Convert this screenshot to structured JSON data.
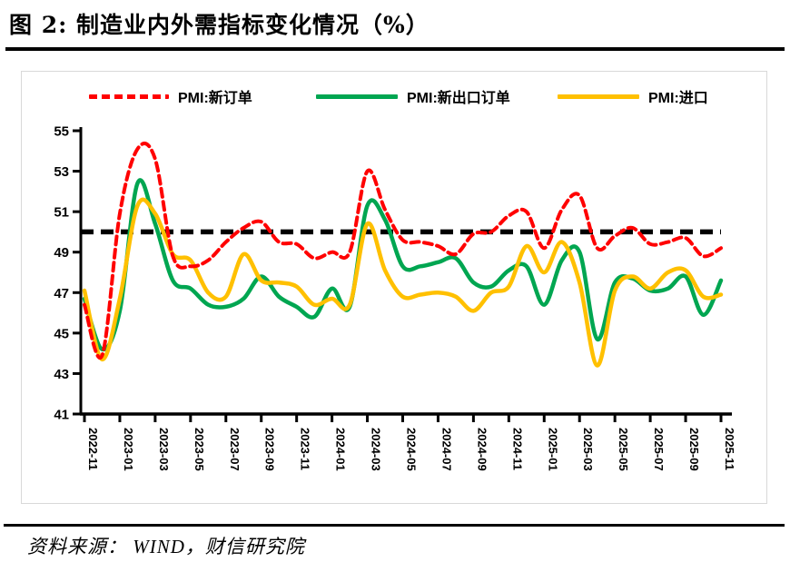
{
  "figure": {
    "title": "图 2:  制造业内外需指标变化情况（%）",
    "source": "资料来源： WIND，财信研究院"
  },
  "chart_data": {
    "type": "line",
    "title": "制造业内外需指标变化情况（%）",
    "xlabel": "",
    "ylabel": "",
    "ylim": [
      41,
      55
    ],
    "y_ticks": [
      41,
      43,
      45,
      47,
      49,
      51,
      53,
      55
    ],
    "reference_line": 50,
    "reference_line_color": "#000000",
    "grid": false,
    "legend_position": "top",
    "x": [
      "2022-11",
      "2022-12",
      "2023-01",
      "2023-02",
      "2023-03",
      "2023-04",
      "2023-05",
      "2023-06",
      "2023-07",
      "2023-08",
      "2023-09",
      "2023-10",
      "2023-11",
      "2023-12",
      "2024-01",
      "2024-02",
      "2024-03",
      "2024-04",
      "2024-05",
      "2024-06",
      "2024-07",
      "2024-08",
      "2024-09",
      "2024-10",
      "2024-11",
      "2024-12",
      "2025-01",
      "2025-02",
      "2025-03",
      "2025-04",
      "2025-05",
      "2025-06",
      "2025-07",
      "2025-08",
      "2025-09",
      "2025-10",
      "2025-11"
    ],
    "x_tick_labels": [
      "2022-11",
      "2023-01",
      "2023-03",
      "2023-05",
      "2023-07",
      "2023-09",
      "2023-11",
      "2024-01",
      "2024-03",
      "2024-05",
      "2024-07",
      "2024-09",
      "2024-11",
      "2025-01",
      "2025-03",
      "2025-05",
      "2025-07",
      "2025-09",
      "2025-11"
    ],
    "series": [
      {
        "name": "PMI:新订单",
        "color": "#FF0000",
        "style": "dashed",
        "values": [
          46.4,
          43.9,
          50.9,
          54.1,
          53.6,
          48.8,
          48.3,
          48.6,
          49.5,
          50.2,
          50.5,
          49.5,
          49.4,
          48.7,
          49.0,
          49.0,
          53.0,
          51.1,
          49.6,
          49.5,
          49.3,
          48.9,
          49.9,
          50.0,
          50.8,
          51.0,
          49.2,
          51.1,
          51.8,
          49.2,
          49.8,
          50.2,
          49.4,
          49.5,
          49.7,
          48.8,
          49.2
        ]
      },
      {
        "name": "PMI:新出口订单",
        "color": "#00A651",
        "style": "solid",
        "values": [
          46.7,
          44.2,
          46.1,
          52.4,
          50.4,
          47.6,
          47.2,
          46.4,
          46.3,
          46.7,
          47.8,
          46.8,
          46.3,
          45.8,
          47.2,
          46.3,
          51.3,
          50.6,
          48.3,
          48.3,
          48.5,
          48.7,
          47.5,
          47.3,
          48.1,
          48.3,
          46.4,
          48.6,
          49.0,
          44.7,
          47.5,
          47.7,
          47.1,
          47.2,
          47.8,
          45.9,
          47.6
        ]
      },
      {
        "name": "PMI:进口",
        "color": "#FFC000",
        "style": "solid",
        "values": [
          47.1,
          43.7,
          46.7,
          51.3,
          50.9,
          48.9,
          48.6,
          47.0,
          46.8,
          48.9,
          47.6,
          47.5,
          47.3,
          46.4,
          46.7,
          46.4,
          50.4,
          48.1,
          46.8,
          46.9,
          47.0,
          46.8,
          46.1,
          47.0,
          47.3,
          49.3,
          48.0,
          49.5,
          47.5,
          43.4,
          47.1,
          47.8,
          47.2,
          48.0,
          48.1,
          46.8,
          46.9
        ]
      }
    ]
  }
}
